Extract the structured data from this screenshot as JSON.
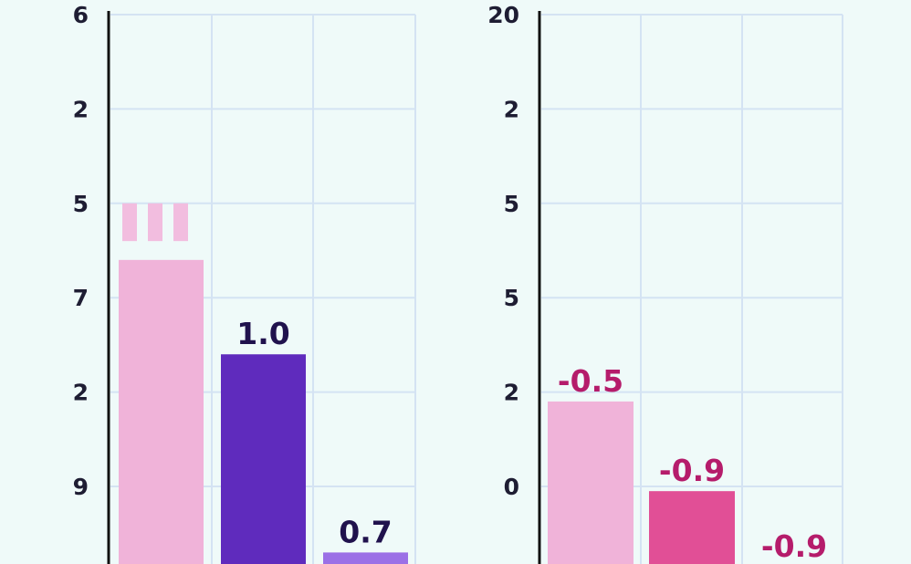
{
  "chart_data": [
    {
      "type": "bar",
      "title": "",
      "xlabel": "",
      "ylabel": "",
      "y_tick_labels": [
        "6",
        "2",
        "5",
        "7",
        "2",
        "9"
      ],
      "y_tick_values": [
        6,
        5,
        4,
        3,
        2,
        1
      ],
      "ylim": [
        0,
        6
      ],
      "grid": true,
      "categories": [
        "",
        "",
        ""
      ],
      "values": [
        3.4,
        2.4,
        0.3
      ],
      "data_labels": [
        "",
        "1.0",
        "0.7"
      ],
      "colors": [
        "#f0b3d9",
        "#5f2bbd",
        "#9b70e6"
      ],
      "label_colors": [
        "#f0b3d9",
        "#20124d",
        "#20124d"
      ],
      "striped_cap_on_first_bar": true,
      "cap_color": "#f2bddf"
    },
    {
      "type": "bar",
      "title": "",
      "xlabel": "",
      "ylabel": "",
      "y_tick_labels": [
        "20",
        "2",
        "5",
        "5",
        "2",
        "0"
      ],
      "y_tick_values": [
        6,
        5,
        4,
        3,
        2,
        1
      ],
      "ylim": [
        0,
        6
      ],
      "grid": true,
      "categories": [
        "",
        "",
        ""
      ],
      "values": [
        1.9,
        0.95,
        0.15
      ],
      "data_labels": [
        "-0.5",
        "-0.9",
        "-0.9"
      ],
      "colors": [
        "#f0b3d9",
        "#e14f96",
        "#f0b3d9"
      ],
      "label_colors": [
        "#b51c6b",
        "#b51c6b",
        "#b51c6b"
      ]
    }
  ]
}
